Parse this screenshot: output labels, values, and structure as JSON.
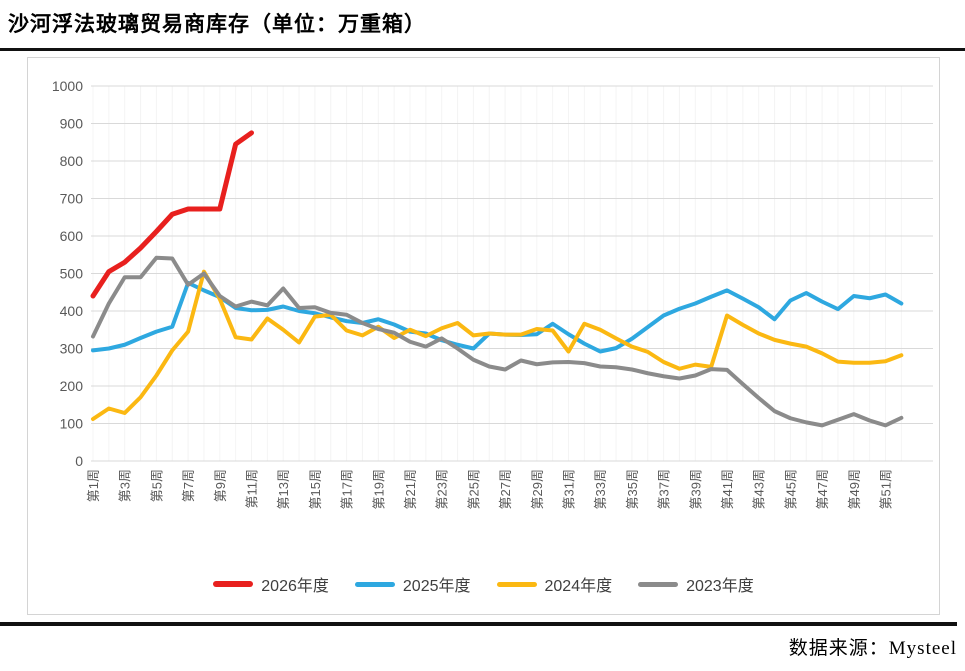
{
  "page": {
    "title": "沙河浮法玻璃贸易商库存（单位：万重箱）",
    "source_note": "数据来源：Mysteel"
  },
  "style": {
    "tick_color": "#595959",
    "grid_color": "#d9d9d9",
    "minor_grid_color": "#f4f4f4",
    "legend_text_color": "#3f3f3f",
    "panel_border_color": "#d4d4d4"
  },
  "chart_data": {
    "type": "line",
    "title": "沙河浮法玻璃贸易商库存",
    "unit": "万重箱",
    "weeks": 52,
    "x_tick_labels": [
      "第1周",
      "第3周",
      "第5周",
      "第7周",
      "第9周",
      "第11周",
      "第13周",
      "第15周",
      "第17周",
      "第19周",
      "第21周",
      "第23周",
      "第25周",
      "第27周",
      "第29周",
      "第31周",
      "第33周",
      "第35周",
      "第37周",
      "第39周",
      "第41周",
      "第43周",
      "第45周",
      "第47周",
      "第49周",
      "第51周"
    ],
    "ylim": [
      0,
      1000
    ],
    "y_tick_step": 100,
    "grid": "horizontal major, faint vertical minor",
    "legend_position": "bottom",
    "series": [
      {
        "name": "2026年度",
        "color": "#e8201e",
        "start_week": 1,
        "values": [
          440,
          505,
          530,
          568,
          612,
          658,
          672,
          672,
          672,
          845,
          875
        ]
      },
      {
        "name": "2025年度",
        "color": "#2ea8e0",
        "start_week": 1,
        "values": [
          295,
          300,
          310,
          328,
          345,
          358,
          475,
          455,
          437,
          408,
          402,
          403,
          412,
          400,
          394,
          383,
          373,
          368,
          378,
          364,
          345,
          340,
          322,
          310,
          300,
          340,
          337,
          336,
          338,
          366,
          338,
          313,
          292,
          301,
          326,
          357,
          388,
          406,
          420,
          438,
          455,
          433,
          410,
          378,
          428,
          448,
          425,
          405,
          440,
          434,
          444,
          420
        ]
      },
      {
        "name": "2024年度",
        "color": "#fbb812",
        "start_week": 1,
        "values": [
          112,
          140,
          128,
          170,
          228,
          295,
          345,
          505,
          432,
          330,
          324,
          380,
          350,
          316,
          385,
          390,
          348,
          335,
          358,
          328,
          350,
          333,
          354,
          368,
          335,
          340,
          337,
          337,
          352,
          348,
          292,
          366,
          350,
          327,
          305,
          291,
          264,
          246,
          257,
          251,
          388,
          363,
          340,
          323,
          313,
          305,
          287,
          265,
          262,
          262,
          266,
          282
        ]
      },
      {
        "name": "2023年度",
        "color": "#8b8b8b",
        "start_week": 1,
        "values": [
          332,
          420,
          490,
          490,
          542,
          540,
          470,
          500,
          440,
          412,
          425,
          415,
          460,
          408,
          410,
          395,
          390,
          368,
          352,
          342,
          318,
          305,
          327,
          300,
          270,
          252,
          244,
          268,
          258,
          263,
          264,
          261,
          252,
          250,
          244,
          234,
          226,
          220,
          228,
          245,
          243,
          205,
          168,
          133,
          114,
          103,
          95,
          110,
          125,
          108,
          95,
          115
        ]
      }
    ]
  }
}
